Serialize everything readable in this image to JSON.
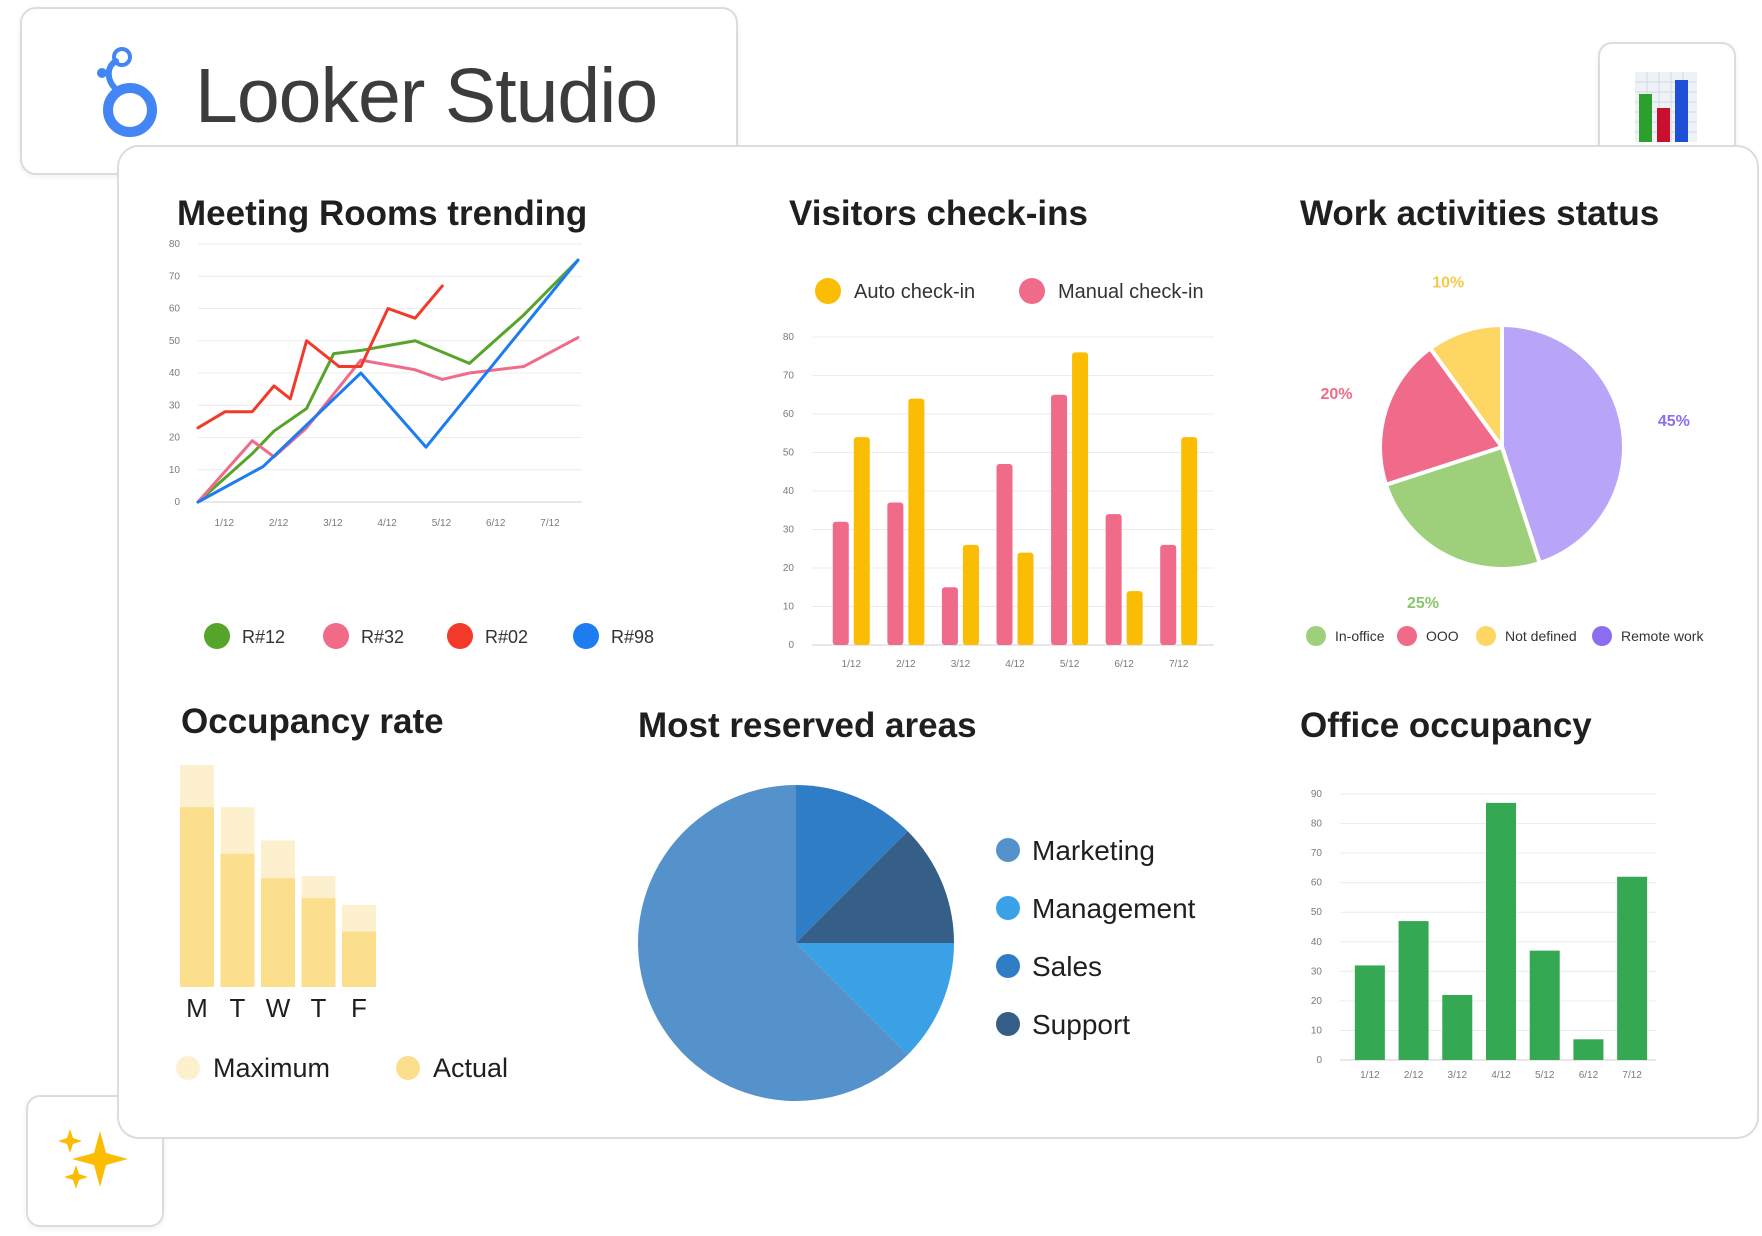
{
  "header": {
    "app_name": "Looker Studio"
  },
  "icons": {
    "logo": "looker-studio-logo-icon",
    "chart": "bar-chart-icon",
    "sparkle": "sparkles-icon"
  },
  "panels": {
    "meeting_rooms": {
      "title": "Meeting Rooms trending"
    },
    "visitors": {
      "title": "Visitors check-ins"
    },
    "work_status": {
      "title": "Work activities status"
    },
    "occupancy_rate": {
      "title": "Occupancy rate"
    },
    "reserved_areas": {
      "title": "Most reserved areas"
    },
    "office_occupancy": {
      "title": "Office occupancy"
    }
  },
  "chart_data": [
    {
      "id": "meeting_rooms",
      "type": "line",
      "title": "Meeting Rooms trending",
      "ylim": [
        0,
        80
      ],
      "yticks": [
        0,
        10,
        20,
        30,
        40,
        50,
        60,
        70,
        80
      ],
      "xlim": [
        0,
        7
      ],
      "xticks": [
        1,
        2,
        3,
        4,
        5,
        6,
        7
      ],
      "xtick_labels": [
        "1/12",
        "2/12",
        "3/12",
        "4/12",
        "5/12",
        "6/12",
        "7/12"
      ],
      "grid": true,
      "legend": "bottom",
      "series": [
        {
          "name": "R#12",
          "color": "#56a52a",
          "x": [
            0,
            1,
            1.4,
            2,
            2.5,
            3,
            4,
            5,
            5.6,
            6,
            7
          ],
          "y": [
            0,
            15,
            22,
            29,
            46,
            47,
            50,
            43,
            52,
            58,
            75
          ]
        },
        {
          "name": "R#32",
          "color": "#f06b8a",
          "x": [
            0,
            1,
            1.4,
            2,
            3,
            4,
            4.5,
            5,
            6,
            7
          ],
          "y": [
            0,
            19,
            14,
            23,
            44,
            41,
            38,
            40,
            42,
            51
          ]
        },
        {
          "name": "R#02",
          "color": "#f2392a",
          "x": [
            0,
            0.5,
            1,
            1.4,
            1.7,
            2,
            2.6,
            3,
            3.5,
            4,
            4.5
          ],
          "y": [
            23,
            28,
            28,
            36,
            32,
            50,
            42,
            42,
            60,
            57,
            67
          ]
        },
        {
          "name": "R#98",
          "color": "#1d7cf0",
          "x": [
            0,
            1.2,
            3,
            4.2,
            7
          ],
          "y": [
            0,
            11,
            40,
            17,
            75
          ]
        }
      ]
    },
    {
      "id": "visitors",
      "type": "bar",
      "title": "Visitors check-ins",
      "categories": [
        "1/12",
        "2/12",
        "3/12",
        "4/12",
        "5/12",
        "6/12",
        "7/12"
      ],
      "ylim": [
        0,
        80
      ],
      "yticks": [
        0,
        10,
        20,
        30,
        40,
        50,
        60,
        70,
        80
      ],
      "grid": true,
      "legend": "top",
      "series": [
        {
          "name": "Manual check-in",
          "color": "#f06b8a",
          "values": [
            32,
            37,
            15,
            47,
            65,
            34,
            26
          ]
        },
        {
          "name": "Auto check-in",
          "color": "#fbbc04",
          "values": [
            54,
            64,
            26,
            24,
            76,
            14,
            54
          ]
        }
      ],
      "legend_order": [
        "Auto check-in",
        "Manual check-in"
      ]
    },
    {
      "id": "work_status",
      "type": "pie",
      "title": "Work activities status",
      "legend": "bottom",
      "slices": [
        {
          "name": "Remote work",
          "value": 45,
          "label": "45%",
          "color": "#b9a5f7",
          "legend_color": "#8c6cf0",
          "label_color": "#8c6cf0"
        },
        {
          "name": "In-office",
          "value": 25,
          "label": "25%",
          "color": "#9ecf7b",
          "legend_color": "#9ecf7b",
          "label_color": "#8bc56a"
        },
        {
          "name": "OOO",
          "value": 20,
          "label": "20%",
          "color": "#f06b8a",
          "legend_color": "#f06b8a",
          "label_color": "#f06b8a"
        },
        {
          "name": "Not defined",
          "value": 10,
          "label": "10%",
          "color": "#fdd663",
          "legend_color": "#fdd663",
          "label_color": "#f6c94a"
        }
      ],
      "legend_order": [
        "In-office",
        "OOO",
        "Not defined",
        "Remote work"
      ]
    },
    {
      "id": "occupancy_rate",
      "type": "bar",
      "title": "Occupancy rate",
      "categories": [
        "M",
        "T",
        "W",
        "T",
        "F"
      ],
      "legend": "bottom",
      "series": [
        {
          "name": "Maximum",
          "color": "#fdf0cf",
          "values": [
            100,
            81,
            66,
            50,
            37
          ]
        },
        {
          "name": "Actual",
          "color": "#fcdf8d",
          "values": [
            81,
            60,
            49,
            40,
            25
          ]
        }
      ]
    },
    {
      "id": "reserved_areas",
      "type": "pie",
      "title": "Most reserved areas",
      "legend": "right",
      "slices": [
        {
          "name": "Marketing",
          "value": 62.5,
          "color": "#5592cb"
        },
        {
          "name": "Management",
          "value": 12.5,
          "color": "#3ba1e6"
        },
        {
          "name": "Sales",
          "value": 12.5,
          "color": "#2f7cc7"
        },
        {
          "name": "Support",
          "value": 12.5,
          "color": "#355f87"
        }
      ]
    },
    {
      "id": "office_occupancy",
      "type": "bar",
      "title": "Office occupancy",
      "categories": [
        "1/12",
        "2/12",
        "3/12",
        "4/12",
        "5/12",
        "6/12",
        "7/12"
      ],
      "ylim": [
        0,
        90
      ],
      "yticks": [
        0,
        10,
        20,
        30,
        40,
        50,
        60,
        70,
        80,
        90
      ],
      "grid": true,
      "series": [
        {
          "name": "",
          "color": "#34a853",
          "values": [
            32,
            47,
            22,
            87,
            37,
            7,
            62
          ]
        }
      ]
    }
  ]
}
